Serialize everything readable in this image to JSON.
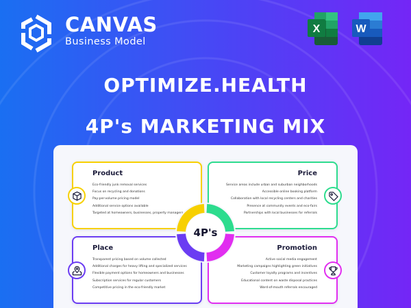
{
  "brand": {
    "name": "CANVAS",
    "subtitle": "Business Model"
  },
  "apps": [
    {
      "letter": "X",
      "name": "Excel"
    },
    {
      "letter": "W",
      "name": "Word"
    }
  ],
  "title": "OPTIMIZE.HEALTH",
  "subtitle": "4P's MARKETING MIX",
  "center_label": "4P's",
  "colors": {
    "product": "#f7d000",
    "price": "#2ddc8e",
    "place": "#6b3cf2",
    "promotion": "#e12ef0"
  },
  "quadrants": {
    "product": {
      "title": "Product",
      "icon": "cube-icon",
      "items": [
        "Eco-friendly junk removal services",
        "Focus on recycling and donations",
        "Pay-per-volume pricing model",
        "Additional service options available",
        "Targeted at homeowners, businesses, property managers"
      ]
    },
    "price": {
      "title": "Price",
      "icon": "price-tag-icon",
      "items": [
        "Service areas include urban and suburban neighborhoods",
        "Accessible online booking platform",
        "Collaboration with local recycling centers and charities",
        "Presence at community events and eco-fairs",
        "Partnerships with local businesses for referrals"
      ]
    },
    "place": {
      "title": "Place",
      "icon": "map-pin-icon",
      "items": [
        "Transparent pricing based on volume collected",
        "Additional charges for heavy lifting and specialized services",
        "Flexible payment options for homeowners and businesses",
        "Subscription services for regular customers",
        "Competitive pricing in the eco-friendly market"
      ]
    },
    "promotion": {
      "title": "Promotion",
      "icon": "trophy-icon",
      "items": [
        "Active social media engagement",
        "Marketing campaigns highlighting green initiatives",
        "Customer loyalty programs and incentives",
        "Educational content on waste disposal practices",
        "Word-of-mouth referrals encouraged"
      ]
    }
  }
}
